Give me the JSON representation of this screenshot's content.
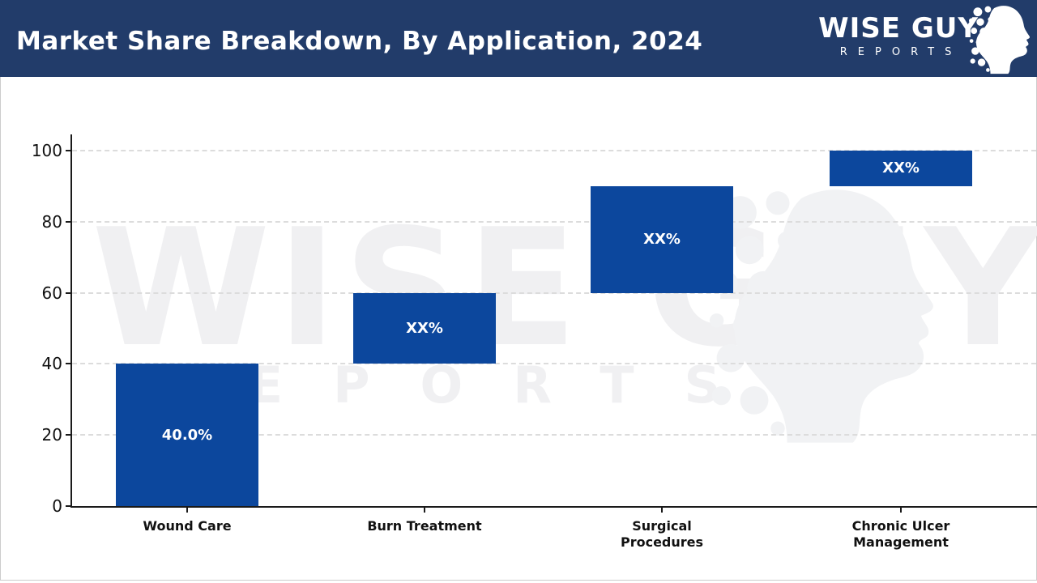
{
  "header": {
    "title": "Market Share Breakdown, By Application, 2024",
    "logo": {
      "line1": "WISE GUY",
      "line2": "REPORTS"
    }
  },
  "watermark": {
    "line1": "WISE GUY",
    "line2": "REPORTS"
  },
  "chart_data": {
    "type": "bar",
    "subtype": "waterfall",
    "title": "Market Share Breakdown, By Application, 2024",
    "categories": [
      "Wound Care",
      "Burn Treatment",
      "Surgical Procedures",
      "Chronic Ulcer Management"
    ],
    "values": [
      40,
      20,
      30,
      10
    ],
    "series": [
      {
        "name": "Market Share",
        "segments": [
          {
            "category": "Wound Care",
            "start": 0,
            "end": 40,
            "label": "40.0%"
          },
          {
            "category": "Burn Treatment",
            "start": 40,
            "end": 60,
            "label": "XX%"
          },
          {
            "category": "Surgical Procedures",
            "start": 60,
            "end": 90,
            "label": "XX%"
          },
          {
            "category": "Chronic Ulcer Management",
            "start": 90,
            "end": 100,
            "label": "XX%"
          }
        ]
      }
    ],
    "y_ticks": [
      0,
      20,
      40,
      60,
      80,
      100
    ],
    "ylim": [
      0,
      104
    ],
    "xlabel": "",
    "ylabel": "",
    "grid": "horizontal-dashed",
    "legend": "none",
    "colors": {
      "bar": "#0c479d",
      "bar_label": "#ffffff",
      "header_bg": "#223c6a",
      "axis": "#1a1a1a",
      "grid": "#dcdcdc",
      "watermark": "#f0f0f2"
    }
  }
}
